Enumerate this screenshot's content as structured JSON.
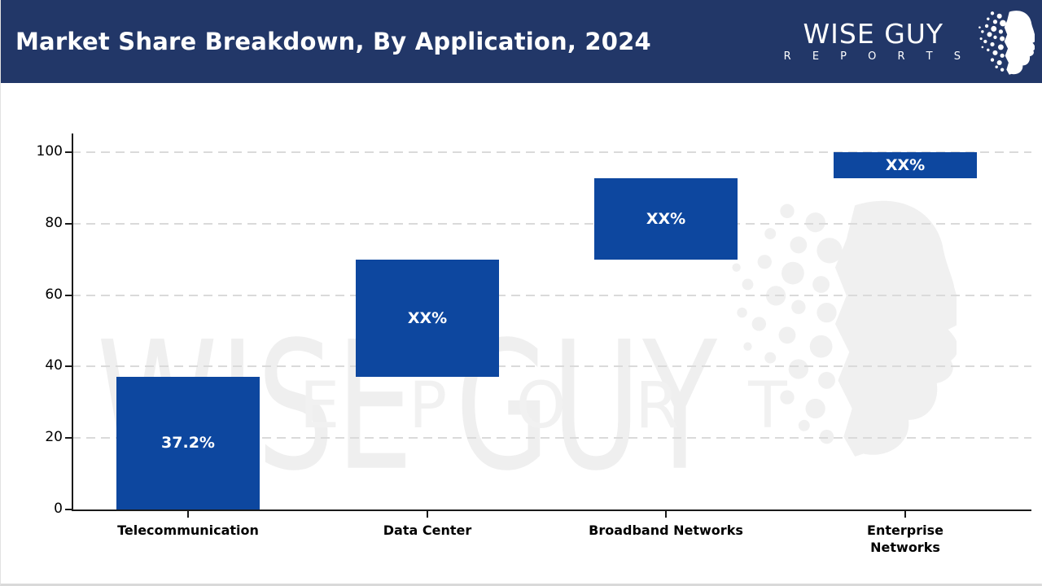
{
  "header": {
    "title": "Market Share Breakdown, By Application, 2024",
    "logo": {
      "name_top": "WISE GUY",
      "name_bottom": "R E P O R T S",
      "icon": "dotted-head-profile-icon"
    }
  },
  "watermark": {
    "text_large": "WISE GUY",
    "text_small": "R E P O R T S",
    "icon": "dotted-head-profile-icon"
  },
  "colors": {
    "header_bg": "#223768",
    "header_text": "#ffffff",
    "bar": "#0d479f",
    "bar_label_text": "#ffffff",
    "grid": "#dadada",
    "axis": "#1a1a1a",
    "watermark": "#efefef",
    "page_bottom_border": "#d9d9d9"
  },
  "chart_data": {
    "type": "bar",
    "variant": "floating-stacked-percentage",
    "title": "Market Share Breakdown, By Application, 2024",
    "categories": [
      "Telecommunication",
      "Data Center",
      "Broadband Networks",
      "Enterprise Networks"
    ],
    "category_label_lines": [
      [
        "Telecommunication"
      ],
      [
        "Data Center"
      ],
      [
        "Broadband Networks"
      ],
      [
        "Enterprise",
        "Networks"
      ]
    ],
    "segments": [
      {
        "category": "Telecommunication",
        "start": 0,
        "end": 37.2,
        "value_label": "37.2%"
      },
      {
        "category": "Data Center",
        "start": 37.2,
        "end": 70,
        "value_label": "XX%"
      },
      {
        "category": "Broadband Networks",
        "start": 70,
        "end": 92.7,
        "value_label": "XX%"
      },
      {
        "category": "Enterprise Networks",
        "start": 92.7,
        "end": 100,
        "value_label": "XX%"
      }
    ],
    "xlabel": "",
    "ylabel": "",
    "yticks": [
      0,
      20,
      40,
      60,
      80,
      100
    ],
    "ylim": [
      0,
      105
    ],
    "grid": "horizontal-dashed",
    "legend": "none",
    "bar_color": "#0d479f"
  }
}
